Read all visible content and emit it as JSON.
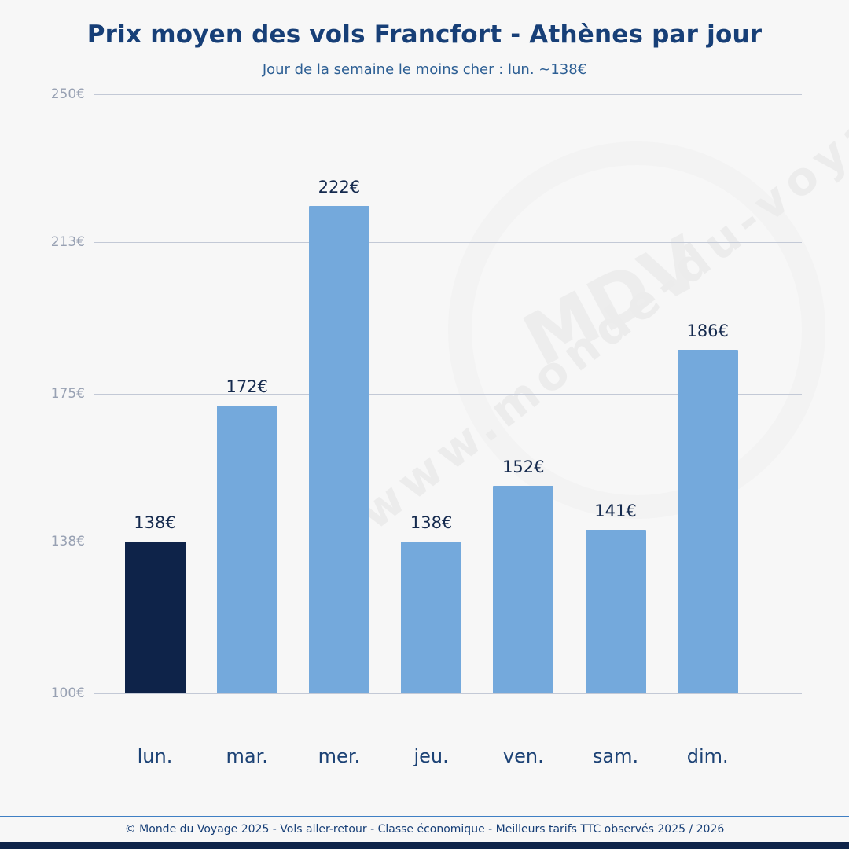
{
  "title": "Prix moyen des vols Francfort - Athènes par jour",
  "subtitle": "Jour de la semaine le moins cher : lun. ~138€",
  "watermark": {
    "text": "www.monde-du-voyage.com",
    "stamp": "MDV"
  },
  "footer": {
    "text": "© Monde du Voyage 2025 - Vols aller-retour - Classe économique - Meilleurs tarifs TTC observés 2025 / 2026"
  },
  "chart_data": {
    "type": "bar",
    "title": "Prix moyen des vols Francfort - Athènes par jour",
    "subtitle": "Jour de la semaine le moins cher : lun. ~138€",
    "categories": [
      "lun.",
      "mar.",
      "mer.",
      "jeu.",
      "ven.",
      "sam.",
      "dim."
    ],
    "values": [
      138,
      172,
      222,
      138,
      152,
      141,
      186
    ],
    "value_labels": [
      "138€",
      "172€",
      "222€",
      "138€",
      "152€",
      "141€",
      "186€"
    ],
    "ylim": [
      100,
      250
    ],
    "yticks": [
      250,
      213,
      175,
      138,
      100
    ],
    "ytick_labels": [
      "250€",
      "213€",
      "175€",
      "138€",
      "100€"
    ],
    "xlabel": "",
    "ylabel": "",
    "grid": true,
    "legend": false,
    "bar_color": "#74a9dc",
    "highlight_color": "#0e2349",
    "highlight_index": 0
  }
}
